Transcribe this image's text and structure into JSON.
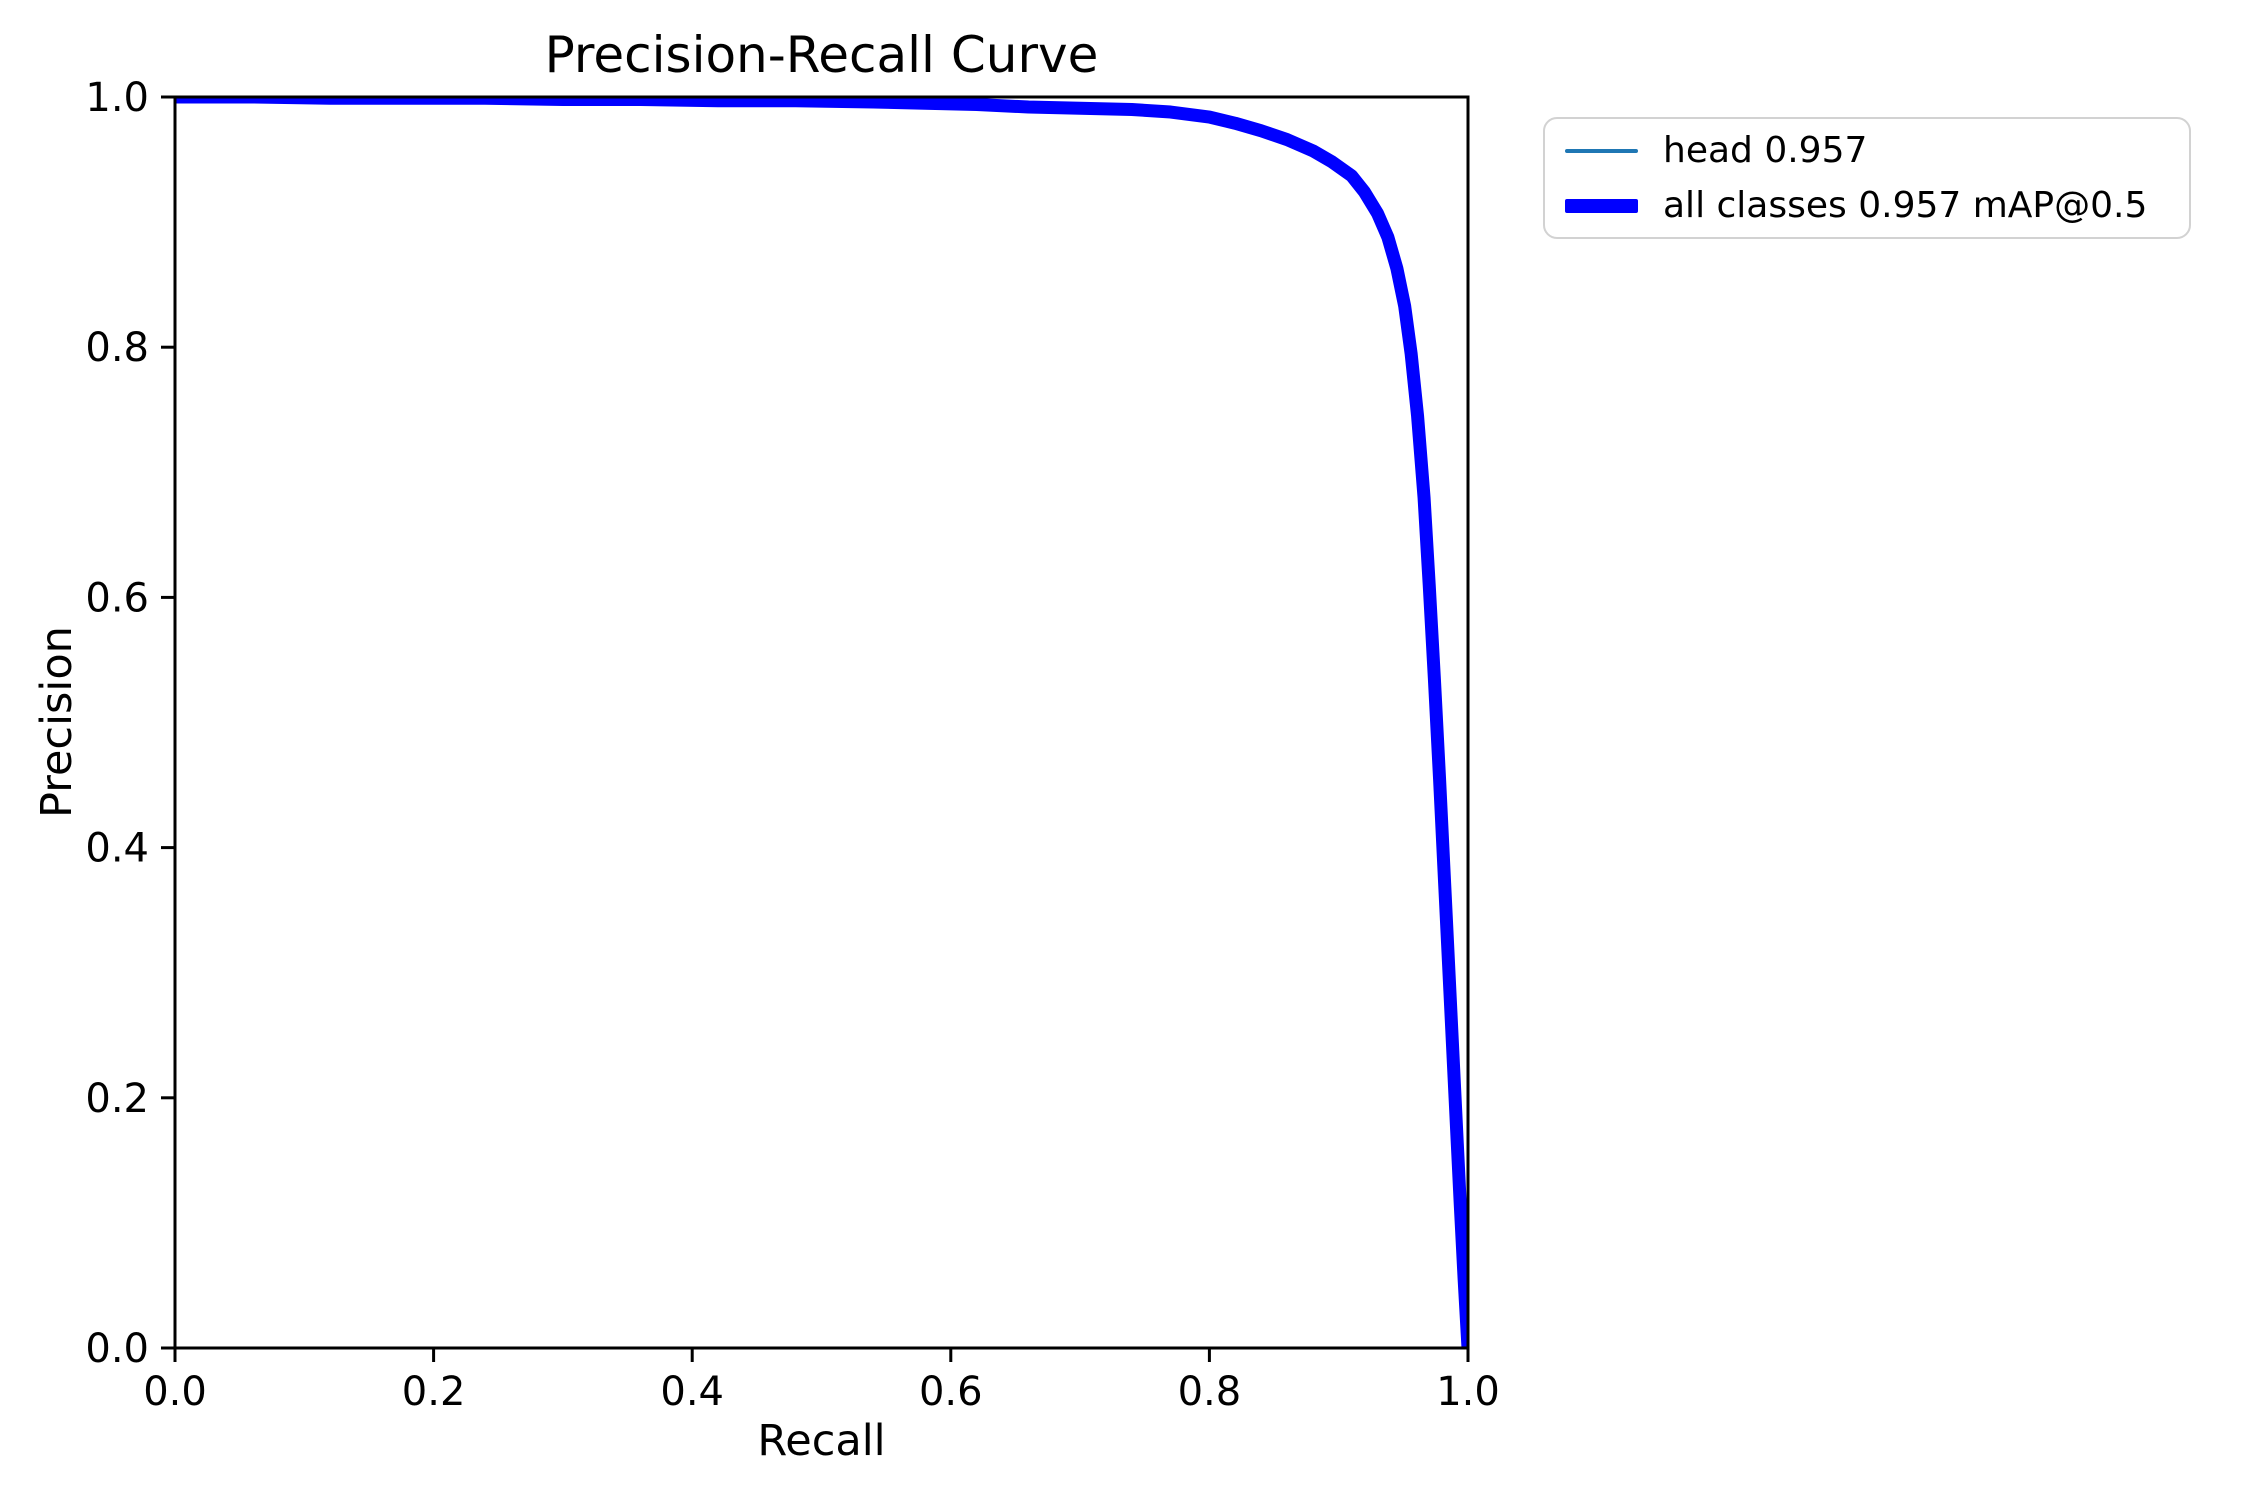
{
  "chart_data": {
    "type": "line",
    "title": "Precision-Recall Curve",
    "xlabel": "Recall",
    "ylabel": "Precision",
    "xlim": [
      0.0,
      1.0
    ],
    "ylim": [
      0.0,
      1.0
    ],
    "xticks": [
      0.0,
      0.2,
      0.4,
      0.6,
      0.8,
      1.0
    ],
    "yticks": [
      0.0,
      0.2,
      0.4,
      0.6,
      0.8,
      1.0
    ],
    "xtick_labels": [
      "0.0",
      "0.2",
      "0.4",
      "0.6",
      "0.8",
      "1.0"
    ],
    "ytick_labels": [
      "0.0",
      "0.2",
      "0.4",
      "0.6",
      "0.8",
      "1.0"
    ],
    "grid": false,
    "legend_position": "outside upper right",
    "series": [
      {
        "id": "head",
        "name": "head 0.957",
        "color": "#1f77b4",
        "linewidth": 3
      },
      {
        "id": "all-classes",
        "name": "all classes 0.957 mAP@0.5",
        "color": "#0000ff",
        "linewidth": 13
      }
    ],
    "points": [
      [
        0.0,
        1.0
      ],
      [
        0.06,
        1.0
      ],
      [
        0.12,
        0.999
      ],
      [
        0.18,
        0.999
      ],
      [
        0.24,
        0.999
      ],
      [
        0.3,
        0.998
      ],
      [
        0.36,
        0.998
      ],
      [
        0.42,
        0.997
      ],
      [
        0.48,
        0.997
      ],
      [
        0.54,
        0.996
      ],
      [
        0.58,
        0.995
      ],
      [
        0.62,
        0.994
      ],
      [
        0.66,
        0.992
      ],
      [
        0.7,
        0.991
      ],
      [
        0.74,
        0.99
      ],
      [
        0.77,
        0.988
      ],
      [
        0.8,
        0.984
      ],
      [
        0.82,
        0.979
      ],
      [
        0.84,
        0.973
      ],
      [
        0.86,
        0.966
      ],
      [
        0.88,
        0.957
      ],
      [
        0.895,
        0.948
      ],
      [
        0.91,
        0.937
      ],
      [
        0.92,
        0.924
      ],
      [
        0.93,
        0.907
      ],
      [
        0.938,
        0.888
      ],
      [
        0.945,
        0.863
      ],
      [
        0.951,
        0.833
      ],
      [
        0.956,
        0.795
      ],
      [
        0.961,
        0.745
      ],
      [
        0.966,
        0.68
      ],
      [
        0.97,
        0.61
      ],
      [
        0.974,
        0.535
      ],
      [
        0.978,
        0.455
      ],
      [
        0.982,
        0.37
      ],
      [
        0.986,
        0.285
      ],
      [
        0.99,
        0.2
      ],
      [
        0.994,
        0.115
      ],
      [
        0.997,
        0.055
      ],
      [
        1.0,
        0.0
      ]
    ]
  }
}
